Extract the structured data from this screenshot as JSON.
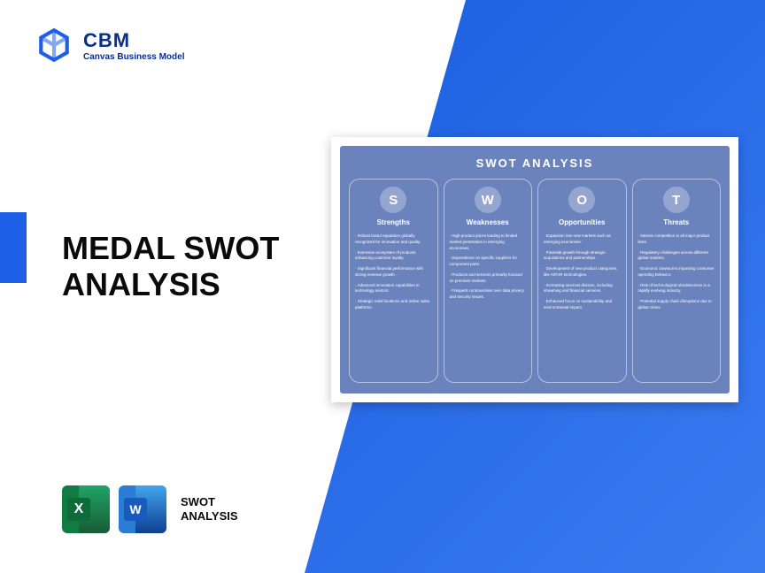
{
  "logo": {
    "title": "CBM",
    "subtitle": "Canvas Business Model",
    "icon_color": "#1e5fe8"
  },
  "accent_color": "#1e5fe8",
  "main_title_line1": "MEDAL SWOT",
  "main_title_line2": "ANALYSIS",
  "bottom": {
    "excel_letter": "X",
    "word_letter": "W",
    "label_line1": "SWOT",
    "label_line2": "ANALYSIS"
  },
  "swot": {
    "title": "SWOT ANALYSIS",
    "card_bg": "#6b83bd",
    "columns": [
      {
        "letter": "S",
        "title": "Strengths",
        "items": [
          "Robust brand reputation globally recognized for innovation and quality.",
          "Extensive ecosystem of products enhancing customer loyalty.",
          "Significant financial performance with strong revenue growth.",
          "Advanced innovation capabilities in technology sectors.",
          "Strategic retail locations and online sales platforms."
        ]
      },
      {
        "letter": "W",
        "title": "Weaknesses",
        "items": [
          "High product prices leading to limited market penetration in emerging economies.",
          "Dependence on specific suppliers for component parts.",
          "Products and services primarily focused on premium markets.",
          "Frequent controversies over data privacy and security issues."
        ]
      },
      {
        "letter": "O",
        "title": "Opportunities",
        "items": [
          "Expansion into new markets such as emerging economies.",
          "Potential growth through strategic acquisitions and partnerships.",
          "Development of new product categories, like AR/VR technologies.",
          "Increasing services division, including streaming and financial services.",
          "Enhanced focus on sustainability and environmental impact."
        ]
      },
      {
        "letter": "T",
        "title": "Threats",
        "items": [
          "Intense competition in all major product lines.",
          "Regulatory challenges across different global markets.",
          "Economic downturns impacting consumer spending behavior.",
          "Risk of technological obsolescence in a rapidly evolving industry.",
          "Potential supply chain disruptions due to global crises."
        ]
      }
    ]
  }
}
